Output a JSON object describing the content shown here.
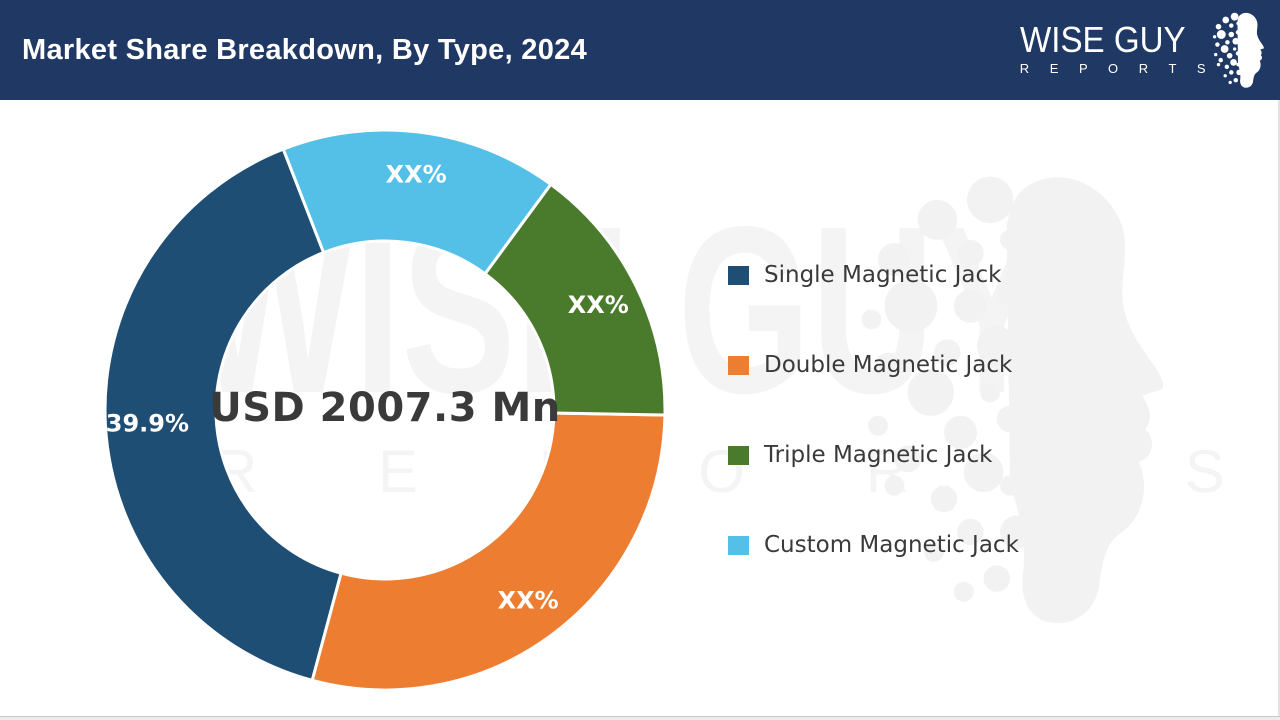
{
  "header": {
    "title": "Market Share Breakdown, By Type, 2024",
    "logo": {
      "wordmark": "WISE GUY",
      "subtext": "R E P O R T S"
    }
  },
  "watermark": {
    "line1": "WISE GUY",
    "line2": "R E P O R T S"
  },
  "colors": {
    "header_bg": "#203864",
    "title_text": "#ffffff",
    "body_text": "#3a3a3a",
    "watermark": "#f4f4f4",
    "slice_separator": "#ffffff"
  },
  "chart_data": {
    "type": "pie",
    "subtype": "donut",
    "title": "Market Share Breakdown, By Type, 2024",
    "center_label": "USD 2007.3 Mn",
    "start_angle_deg": 111.3,
    "direction": "counterclockwise",
    "legend_position": "right",
    "note": "Only the Single Magnetic Jack share is printed (39.9%); other slice labels are masked as XX%. Their value_pct values are estimated from arc angles.",
    "segments": [
      {
        "label": "Single Magnetic Jack",
        "value_pct": 39.9,
        "display_label": "39.9%",
        "color": "#1F4E74"
      },
      {
        "label": "Double Magnetic Jack",
        "value_pct": 28.9,
        "display_label": "XX%",
        "color": "#ED7D31"
      },
      {
        "label": "Triple Magnetic Jack",
        "value_pct": 15.2,
        "display_label": "XX%",
        "color": "#4A7A2B"
      },
      {
        "label": "Custom Magnetic Jack",
        "value_pct": 16.0,
        "display_label": "XX%",
        "color": "#54C0E8"
      }
    ]
  }
}
